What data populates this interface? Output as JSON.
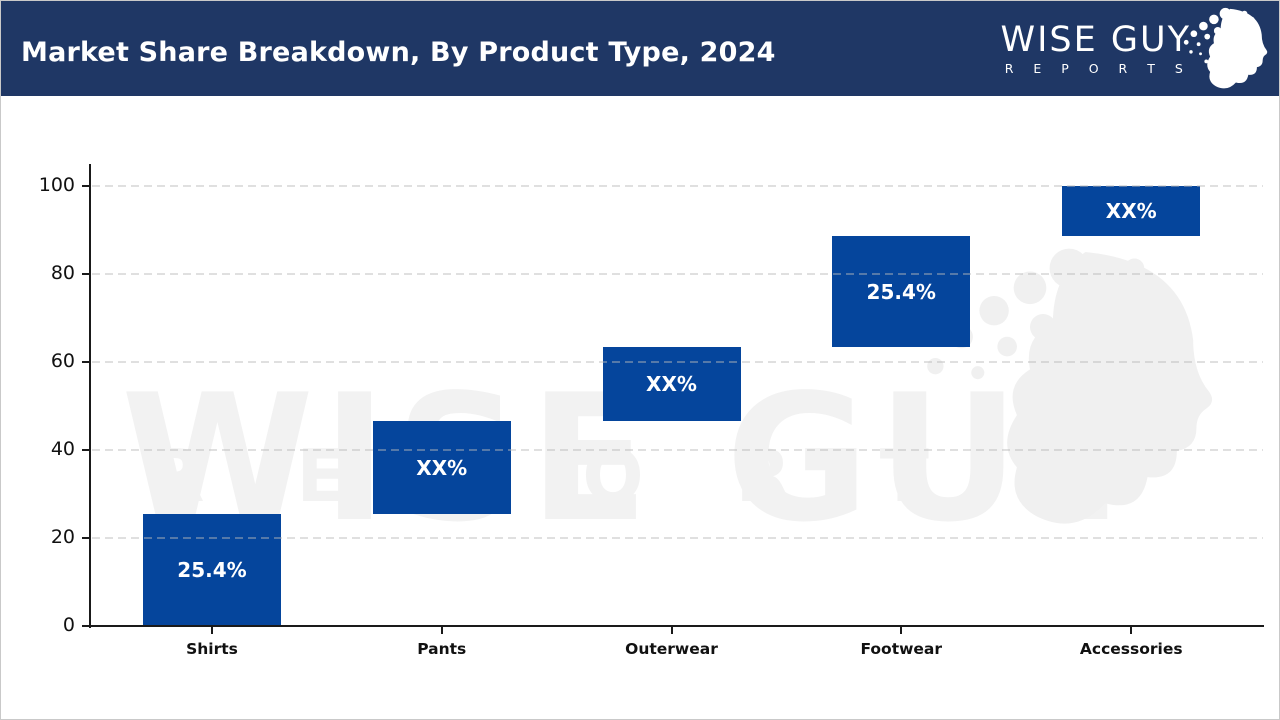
{
  "header": {
    "title": "Market Share Breakdown, By Product Type, 2024",
    "logo": {
      "line1": "WISE GUY",
      "line2": "R E P O R T S"
    }
  },
  "watermark": {
    "line1": "WISE GUY",
    "line2": "REPORTS"
  },
  "chart_data": {
    "type": "bar",
    "subtype": "waterfall",
    "title": "Market Share Breakdown, By Product Type, 2024",
    "categories": [
      "Shirts",
      "Pants",
      "Outerwear",
      "Footwear",
      "Accessories"
    ],
    "segments": [
      {
        "category": "Shirts",
        "start": 0,
        "end": 25.4,
        "label": "25.4%"
      },
      {
        "category": "Pants",
        "start": 25.4,
        "end": 46.5,
        "label": "XX%"
      },
      {
        "category": "Outerwear",
        "start": 46.5,
        "end": 63.3,
        "label": "XX%"
      },
      {
        "category": "Footwear",
        "start": 63.3,
        "end": 88.7,
        "label": "25.4%"
      },
      {
        "category": "Accessories",
        "start": 88.7,
        "end": 100,
        "label": "XX%"
      }
    ],
    "yticks": [
      0,
      20,
      40,
      60,
      80,
      100
    ],
    "ylim": [
      0,
      105
    ],
    "grid": "horizontal-dashed",
    "legend": "none",
    "bar_color": "#05459C",
    "bar_label_color": "#ffffff",
    "axis_color": "#1a1a1a",
    "header_bg_color": "#1F3765",
    "watermark_color": "#f2f2f2"
  }
}
